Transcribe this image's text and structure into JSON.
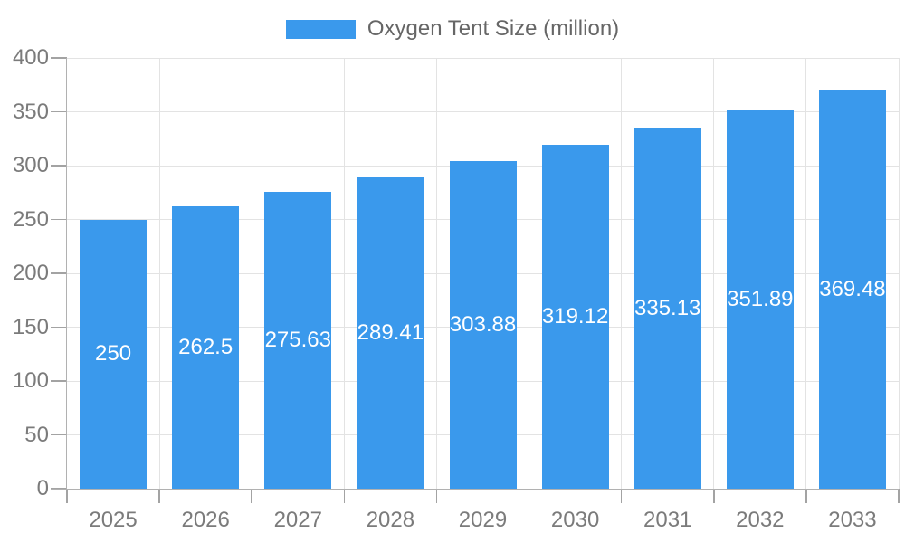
{
  "legend": {
    "label": "Oxygen Tent Size (million)",
    "swatch_color": "#3a99ec"
  },
  "chart_data": {
    "type": "bar",
    "title": "",
    "categories": [
      "2025",
      "2026",
      "2027",
      "2028",
      "2029",
      "2030",
      "2031",
      "2032",
      "2033"
    ],
    "series": [
      {
        "name": "Oxygen Tent Size (million)",
        "color": "#3a99ec",
        "values": [
          250,
          262.5,
          275.63,
          289.41,
          303.88,
          319.12,
          335.13,
          351.89,
          369.48
        ]
      }
    ],
    "value_labels": [
      "250",
      "262.5",
      "275.63",
      "289.41",
      "303.88",
      "319.12",
      "335.13",
      "351.89",
      "369.48"
    ],
    "xlabel": "",
    "ylabel": "",
    "ylim": [
      0,
      400
    ],
    "y_ticks": [
      0,
      50,
      100,
      150,
      200,
      250,
      300,
      350,
      400
    ],
    "grid": true,
    "legend_position": "top",
    "bar_label_position": "inside-middle"
  },
  "colors": {
    "bar": "#3a99ec",
    "value_label_text": "#ffffff",
    "axis_text": "#7b7b7b",
    "legend_text": "#666666",
    "gridline": "#e3e3e3",
    "axis_line": "#b1b1b1",
    "tick_mark": "#a3a3a3",
    "background": "#ffffff"
  }
}
